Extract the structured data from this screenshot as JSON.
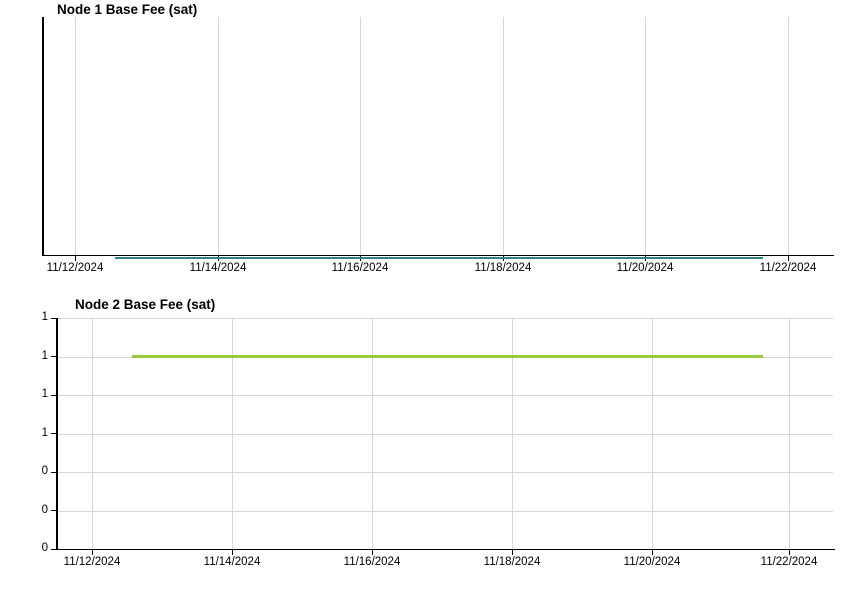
{
  "charts": [
    {
      "title": "Node 1 Base Fee (sat)",
      "x_tick_labels": [
        "11/12/2024",
        "11/14/2024",
        "11/16/2024",
        "11/18/2024",
        "11/20/2024",
        "11/22/2024"
      ],
      "y_tick_labels": [],
      "line_color": "#2D828C"
    },
    {
      "title": "Node 2 Base Fee (sat)",
      "x_tick_labels": [
        "11/12/2024",
        "11/14/2024",
        "11/16/2024",
        "11/18/2024",
        "11/20/2024",
        "11/22/2024"
      ],
      "y_tick_labels": [
        "1",
        "1",
        "1",
        "1",
        "0",
        "0",
        "0"
      ],
      "line_color": "#97CA3E"
    }
  ],
  "colors": {
    "background": "#FFFFFF",
    "axis": "#000000",
    "gridline": "#D6D6D6",
    "text": "#000000",
    "node1_line": "#2D828C",
    "node2_line": "#97CA3E"
  },
  "chart_data": [
    {
      "type": "line",
      "title": "Node 1 Base Fee (sat)",
      "xlabel": "",
      "ylabel": "",
      "x_ticks": [
        "11/12/2024",
        "11/14/2024",
        "11/16/2024",
        "11/18/2024",
        "11/20/2024",
        "11/22/2024"
      ],
      "y_ticks": [],
      "grid": "vertical-only",
      "legend": "none",
      "series": [
        {
          "name": "Node 1 base fee",
          "color": "#2D828C",
          "shape": "constant flat horizontal line sitting along the bottom edge of the plot",
          "x_start_approx": "11/12/2024",
          "x_end_approx": "11/21/2024",
          "points": [
            {
              "x": "11/12/2024",
              "y": 1
            },
            {
              "x": "11/21/2024",
              "y": 1
            }
          ]
        }
      ]
    },
    {
      "type": "line",
      "title": "Node 2 Base Fee (sat)",
      "xlabel": "",
      "ylabel": "",
      "x_ticks": [
        "11/12/2024",
        "11/14/2024",
        "11/16/2024",
        "11/18/2024",
        "11/20/2024",
        "11/22/2024"
      ],
      "y_ticks": [
        "1",
        "1",
        "1",
        "1",
        "0",
        "0",
        "0"
      ],
      "y_range_inferred": [
        0,
        1.2
      ],
      "grid": "horizontal-and-vertical",
      "legend": "none",
      "series": [
        {
          "name": "Node 2 base fee",
          "color": "#97CA3E",
          "shape": "constant flat horizontal line at y = 1 (second tick from top)",
          "x_start_approx": "11/12/2024",
          "x_end_approx": "11/21/2024",
          "points": [
            {
              "x": "11/12/2024",
              "y": 1
            },
            {
              "x": "11/21/2024",
              "y": 1
            }
          ]
        }
      ]
    }
  ]
}
